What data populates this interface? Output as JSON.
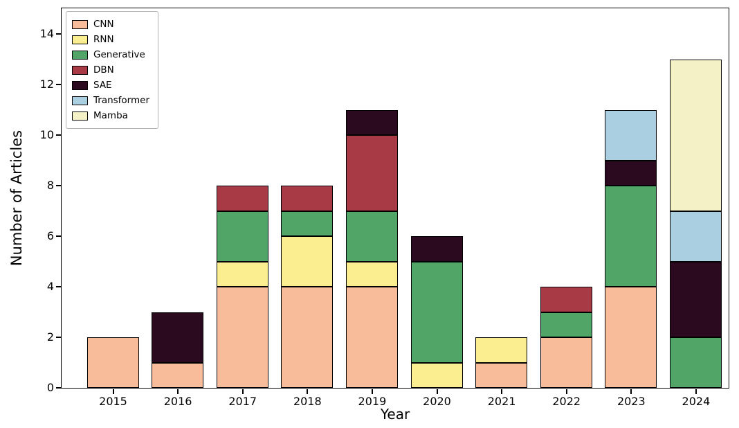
{
  "chart_data": {
    "type": "bar",
    "stacked": true,
    "title": "",
    "xlabel": "Year",
    "ylabel": "Number of Articles",
    "categories": [
      "2015",
      "2016",
      "2017",
      "2018",
      "2019",
      "2020",
      "2021",
      "2022",
      "2023",
      "2024"
    ],
    "yticks": [
      0,
      2,
      4,
      6,
      8,
      10,
      12,
      14
    ],
    "ylim": [
      0,
      15
    ],
    "grid": false,
    "legend_position": "upper left",
    "bar_edge_color": "#000000",
    "series": [
      {
        "name": "CNN",
        "color": "#f9bc9a",
        "values": [
          2,
          1,
          4,
          4,
          4,
          0,
          1,
          2,
          4,
          0
        ]
      },
      {
        "name": "RNN",
        "color": "#fbee90",
        "values": [
          0,
          0,
          1,
          2,
          1,
          1,
          1,
          0,
          0,
          0
        ]
      },
      {
        "name": "Generative",
        "color": "#50a567",
        "values": [
          0,
          0,
          2,
          1,
          2,
          4,
          0,
          1,
          4,
          2
        ]
      },
      {
        "name": "DBN",
        "color": "#a83a45",
        "values": [
          0,
          0,
          1,
          1,
          3,
          0,
          0,
          1,
          0,
          0
        ]
      },
      {
        "name": "SAE",
        "color": "#2b0a20",
        "values": [
          0,
          2,
          0,
          0,
          1,
          1,
          0,
          0,
          1,
          3
        ]
      },
      {
        "name": "Transformer",
        "color": "#a9cfe0",
        "values": [
          0,
          0,
          0,
          0,
          0,
          0,
          0,
          0,
          2,
          2
        ]
      },
      {
        "name": "Mamba",
        "color": "#f5f1c6",
        "values": [
          0,
          0,
          0,
          0,
          0,
          0,
          0,
          0,
          0,
          6
        ]
      }
    ],
    "totals": [
      2,
      3,
      8,
      8,
      11,
      6,
      2,
      4,
      11,
      13
    ]
  }
}
